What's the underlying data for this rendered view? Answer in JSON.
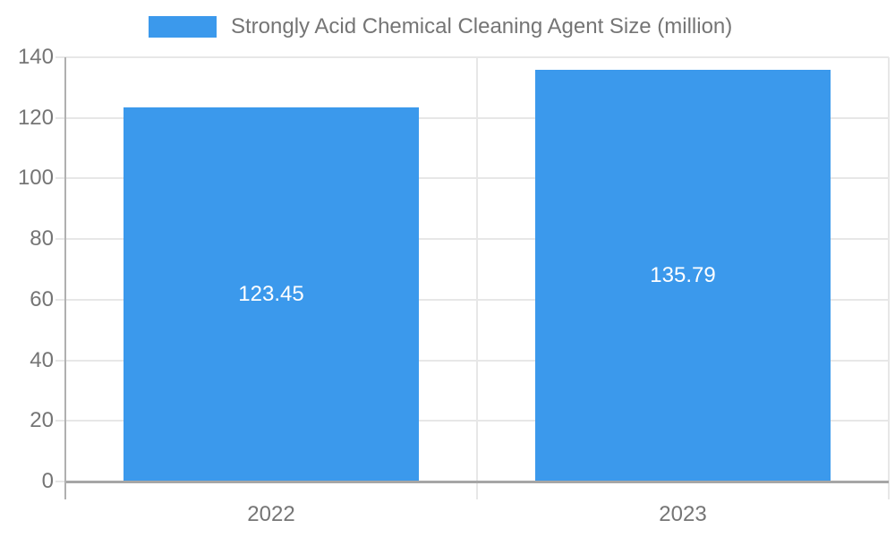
{
  "chart_data": {
    "type": "bar",
    "title": "Strongly Acid Chemical Cleaning Agent Size (million)",
    "categories": [
      "2022",
      "2023"
    ],
    "series": [
      {
        "name": "Strongly Acid Chemical Cleaning Agent Size (million)",
        "values": [
          123.45,
          135.79
        ]
      }
    ],
    "value_labels": [
      "123.45",
      "135.79"
    ],
    "xlabel": "",
    "ylabel": "",
    "ylim": [
      0,
      140
    ],
    "yticks": [
      0,
      20,
      40,
      60,
      80,
      100,
      120,
      140
    ],
    "grid": true,
    "legend_position": "top",
    "colors": {
      "bar": "#3b99ec",
      "value_label_text": "#ffffff",
      "axis_text": "#757575",
      "grid_line": "#e7e7e7",
      "axis_line": "#a6a6a6",
      "y_axis_line": "#b0b0b0",
      "background": "#ffffff"
    }
  }
}
